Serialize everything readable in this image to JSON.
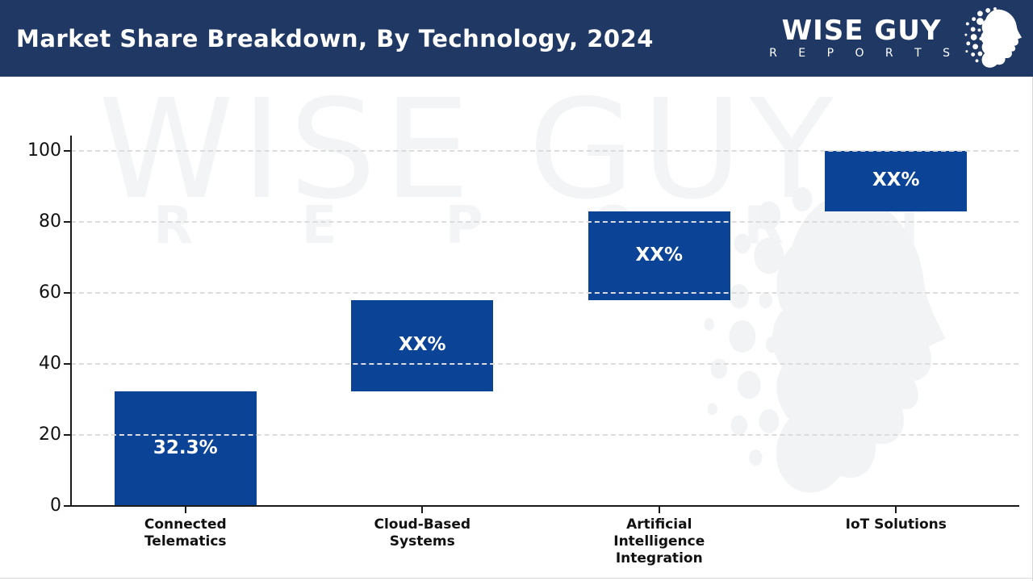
{
  "header": {
    "title": "Market Share Breakdown, By Technology, 2024",
    "logo": {
      "name": "WISE GUY",
      "sub": "R E P O R T S"
    }
  },
  "watermark": {
    "name": "WISE GUY",
    "sub": "R E P O R T S"
  },
  "chart_data": {
    "type": "bar",
    "subtype": "floating-waterfall",
    "title": "Market Share Breakdown, By Technology, 2024",
    "categories": [
      "Connected\nTelematics",
      "Cloud-Based\nSystems",
      "Artificial\nIntelligence\nIntegration",
      "IoT Solutions"
    ],
    "segments": [
      {
        "category": "Connected Telematics",
        "start": 0,
        "end": 32.3,
        "label": "32.3%"
      },
      {
        "category": "Cloud-Based Systems",
        "start": 32.3,
        "end": 58,
        "label": "XX%"
      },
      {
        "category": "Artificial Intelligence Integration",
        "start": 58,
        "end": 83,
        "label": "XX%"
      },
      {
        "category": "IoT Solutions",
        "start": 83,
        "end": 100,
        "label": "XX%"
      }
    ],
    "ylim": [
      0,
      100
    ],
    "yticks": [
      0,
      20,
      40,
      60,
      80,
      100
    ],
    "xlabel": "",
    "ylabel": "",
    "grid": "horizontal-dashed",
    "grid_on_top": true,
    "legend": "none",
    "colors": {
      "bar": "#0b4397",
      "bar_label": "#ffffff",
      "header_bg": "#203864",
      "grid": "#dcdcdc",
      "axis": "#1a1a1a",
      "watermark": "#f3f4f6"
    }
  }
}
